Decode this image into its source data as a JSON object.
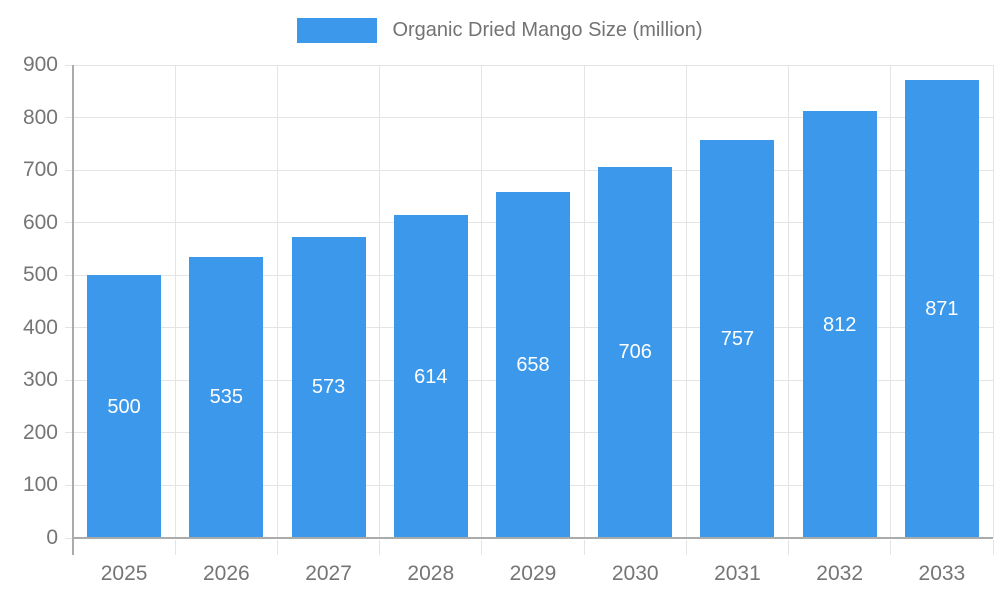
{
  "legend": {
    "label": "Organic Dried Mango Size (million)"
  },
  "chart_data": {
    "type": "bar",
    "title": "Organic Dried Mango Size (million)",
    "categories": [
      "2025",
      "2026",
      "2027",
      "2028",
      "2029",
      "2030",
      "2031",
      "2032",
      "2033"
    ],
    "values": [
      500,
      535,
      573,
      614,
      658,
      706,
      757,
      812,
      871
    ],
    "value_labels": [
      "500",
      "535",
      "573",
      "614",
      "658",
      "706",
      "757",
      "812",
      "871"
    ],
    "xlabel": "",
    "ylabel": "",
    "ylim": [
      0,
      900
    ],
    "ytick_interval": 100,
    "yticks": [
      "0",
      "100",
      "200",
      "300",
      "400",
      "500",
      "600",
      "700",
      "800",
      "900"
    ],
    "grid": true,
    "legend_position": "top",
    "value_label_position": "center-inside"
  },
  "colors": {
    "bar": "#3b98eb",
    "value_label": "#ffffff",
    "grid": "#e4e4e4",
    "axis": "#ababab",
    "tick_text": "#757575",
    "legend_text": "#737373",
    "background": "#ffffff"
  }
}
